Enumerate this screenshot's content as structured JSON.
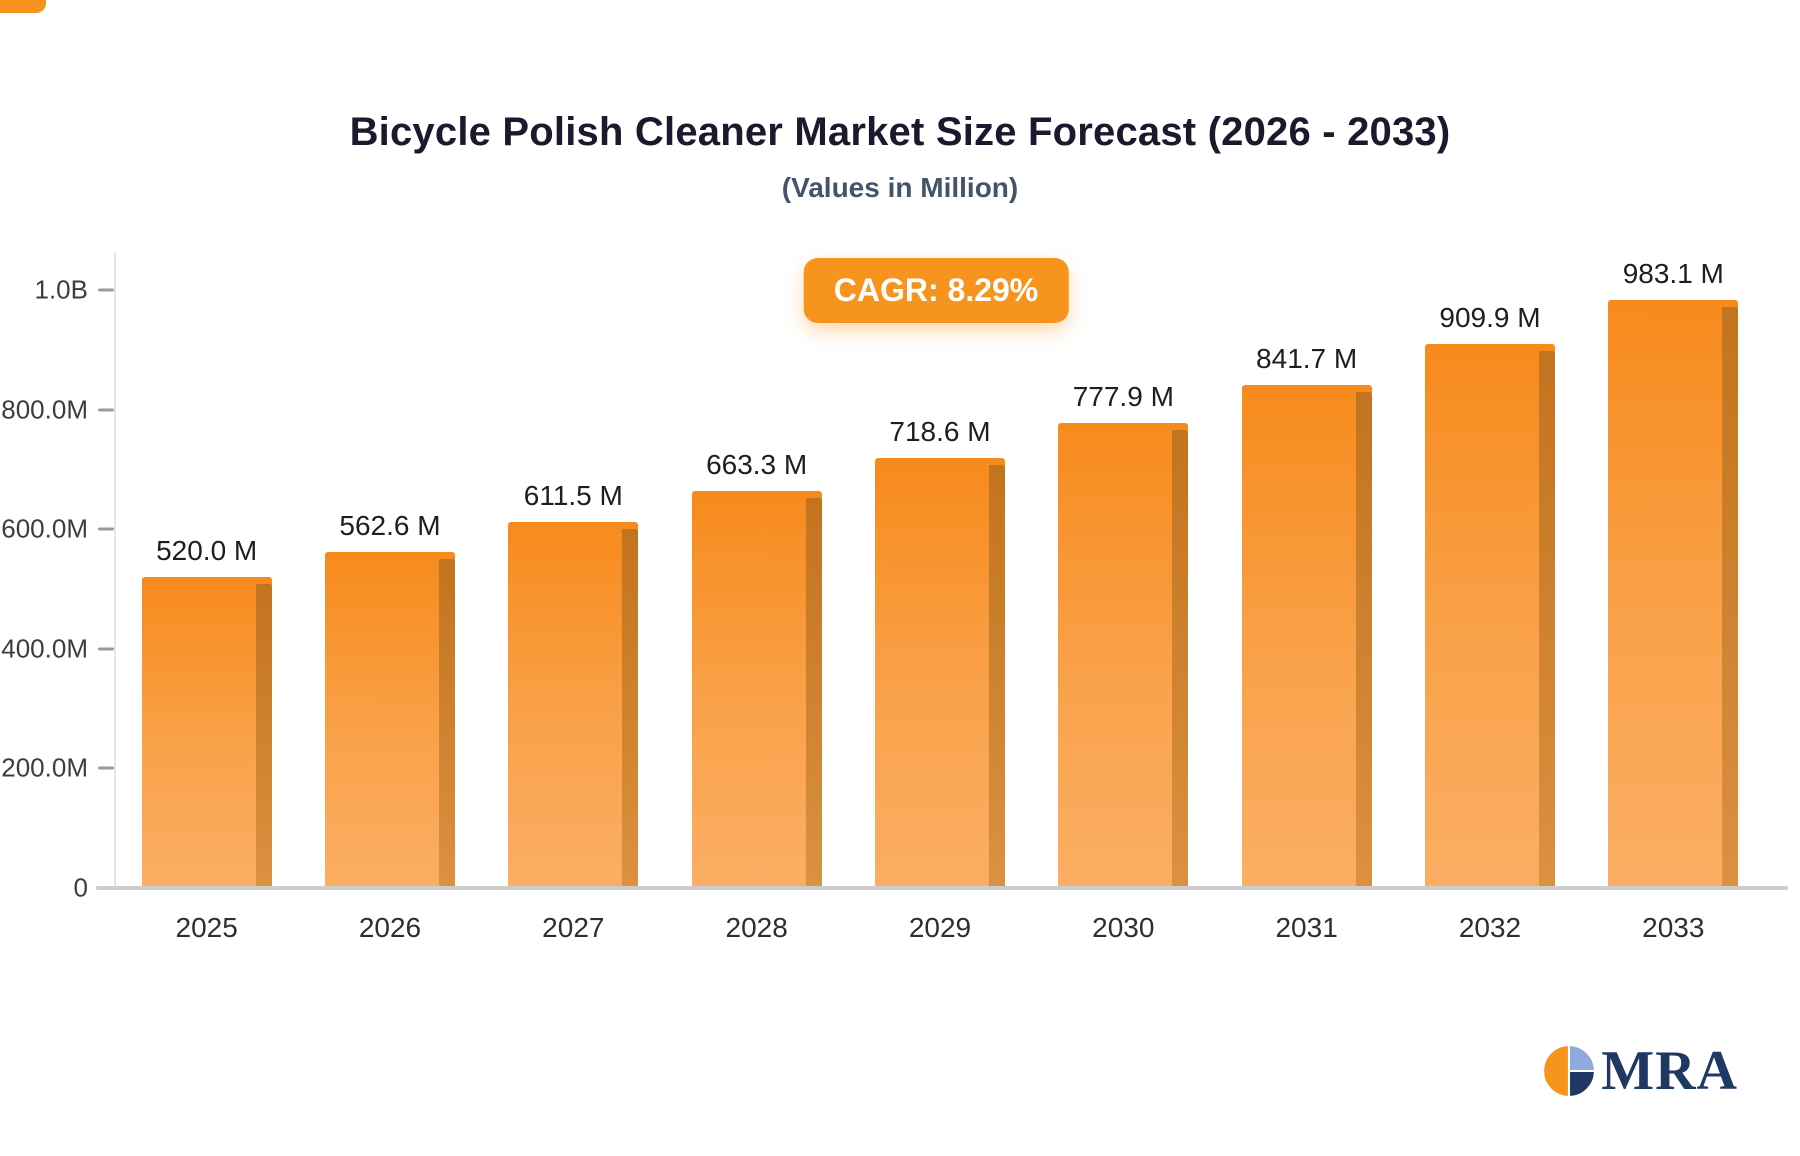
{
  "header": {
    "title": "Bicycle Polish Cleaner Market Size Forecast (2026 - 2033)",
    "subtitle": "(Values in Million)"
  },
  "badge": {
    "label": "CAGR: 8.29%",
    "cagr_percent": 8.29
  },
  "logo": {
    "text": "MRA"
  },
  "colors": {
    "accent_orange": "#F7941E",
    "bar_top": "#F78A1C",
    "bar_bottom": "#FBAE63",
    "bar_side_top": "#C2731E",
    "bar_side_bottom": "#DB9140",
    "title_color": "#1A1A2E",
    "subtitle_color": "#44546A",
    "axis_text": "#3D3D3D",
    "logo_navy": "#1F3864",
    "logo_blue": "#8FAADC"
  },
  "chart_data": {
    "type": "bar",
    "title": "Bicycle Polish Cleaner Market Size Forecast (2026 - 2033)",
    "subtitle": "(Values in Million)",
    "annotation": "CAGR: 8.29%",
    "categories": [
      "2025",
      "2026",
      "2027",
      "2028",
      "2029",
      "2030",
      "2031",
      "2032",
      "2033"
    ],
    "values": [
      520.0,
      562.6,
      611.5,
      663.3,
      718.6,
      777.9,
      841.7,
      909.9,
      983.1
    ],
    "value_labels": [
      "520.0 M",
      "562.6 M",
      "611.5 M",
      "663.3 M",
      "718.6 M",
      "777.9 M",
      "841.7 M",
      "909.9 M",
      "983.1 M"
    ],
    "xlabel": "",
    "ylabel": "",
    "ylim": [
      0,
      1000
    ],
    "yticks": [
      {
        "value": 0,
        "label": "0"
      },
      {
        "value": 200,
        "label": "200.0M"
      },
      {
        "value": 400,
        "label": "400.0M"
      },
      {
        "value": 600,
        "label": "600.0M"
      },
      {
        "value": 800,
        "label": "800.0M"
      },
      {
        "value": 1000,
        "label": "1.0B"
      }
    ],
    "grid": false,
    "legend": false
  }
}
